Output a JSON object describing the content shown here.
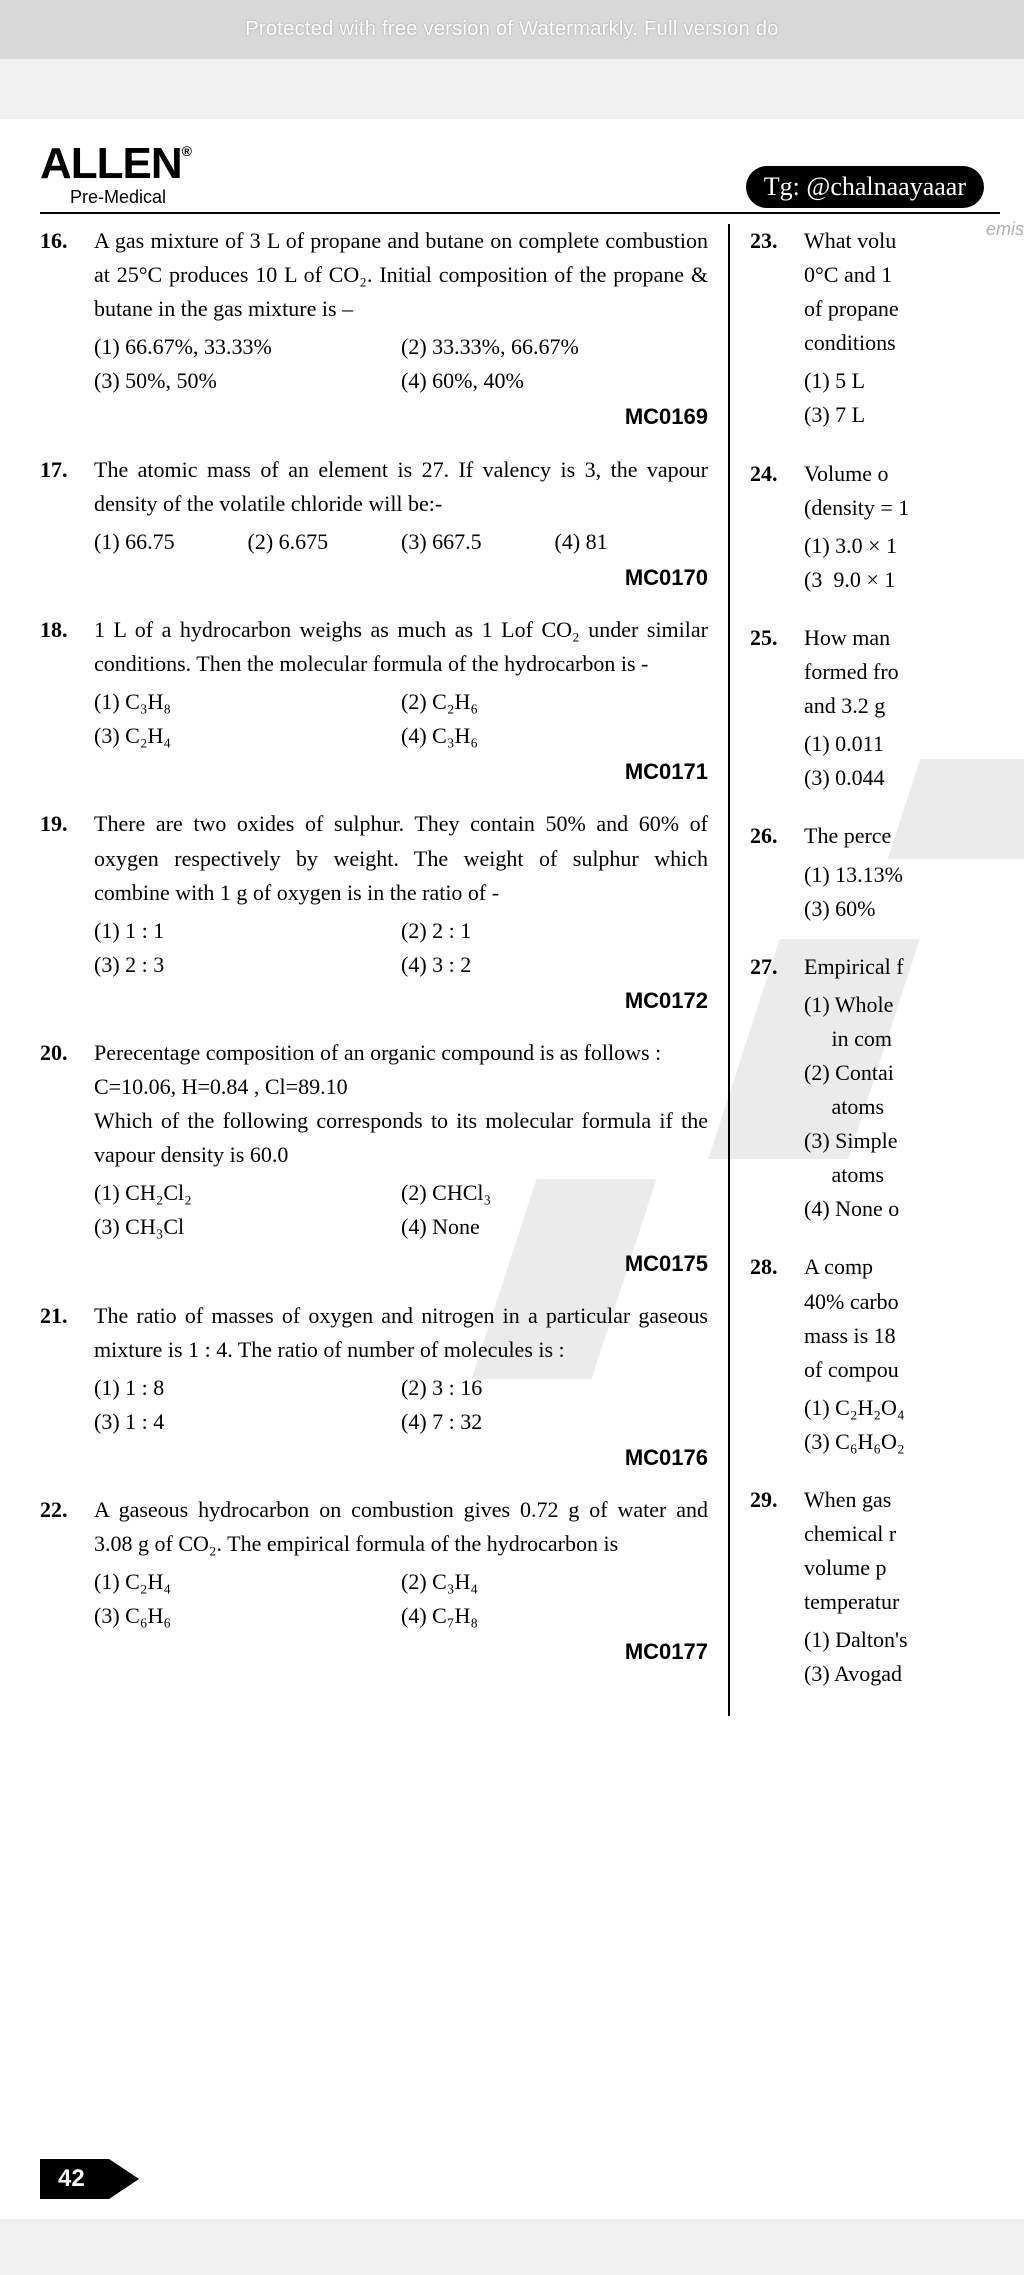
{
  "watermark": "Protected with free version of Watermarkly. Full version do",
  "logo": "ALLEN",
  "logo_reg": "®",
  "pre_medical": "Pre-Medical",
  "tg": "Tg: @chalnaayaaar",
  "emis": "emis",
  "page_number": "42",
  "left": [
    {
      "num": "16.",
      "text": "A gas mixture of 3 L of propane and butane on complete combustion at 25°C produces 10 L of CO₂. Initial composition of the propane & butane in the gas mixture is –",
      "opts": [
        "(1) 66.67%, 33.33%",
        "(2) 33.33%, 66.67%",
        "(3) 50%, 50%",
        "(4) 60%, 40%"
      ],
      "cols": 2,
      "code": "MC0169"
    },
    {
      "num": "17.",
      "text": "The atomic mass of an element is 27. If valency is 3, the vapour density of the volatile chloride will be:-",
      "opts": [
        "(1) 66.75",
        "(2) 6.675",
        "(3) 667.5",
        "(4) 81"
      ],
      "cols": 4,
      "code": "MC0170"
    },
    {
      "num": "18.",
      "text": "1 L of a hydrocarbon weighs as much as 1 Lof CO₂ under similar conditions. Then the molecular formula of the hydrocarbon is -",
      "opts": [
        "(1) C₃H₈",
        "(2) C₂H₆",
        "(3) C₂H₄",
        "(4) C₃H₆"
      ],
      "cols": 2,
      "code": "MC0171"
    },
    {
      "num": "19.",
      "text": "There are two oxides of sulphur. They contain 50% and 60% of oxygen respectively by weight. The weight of sulphur which combine with 1 g of oxygen is in the ratio of -",
      "opts": [
        "(1) 1 : 1",
        "(2) 2 : 1",
        "(3) 2 : 3",
        "(4) 3 : 2"
      ],
      "cols": 2,
      "code": "MC0172"
    },
    {
      "num": "20.",
      "text": "Perecentage composition of an organic compound is as follows :\nC=10.06, H=0.84 , Cl=89.10\nWhich of the following corresponds to its molecular formula if the vapour density is 60.0",
      "opts": [
        "(1) CH₂Cl₂",
        "(2) CHCl₃",
        "(3) CH₃Cl",
        "(4) None"
      ],
      "cols": 2,
      "code": "MC0175"
    },
    {
      "num": "21.",
      "text": "The ratio of masses of oxygen and nitrogen in a particular gaseous mixture is 1 : 4. The ratio of number of molecules is :",
      "opts": [
        "(1) 1 : 8",
        "(2) 3 : 16",
        "(3) 1 : 4",
        "(4) 7 : 32"
      ],
      "cols": 2,
      "code": "MC0176"
    },
    {
      "num": "22.",
      "text": "A gaseous hydrocarbon on combustion gives 0.72 g of water and 3.08 g of CO₂. The empirical formula of the hydrocarbon is",
      "opts": [
        "(1) C₂H₄",
        "(2) C₃H₄",
        "(3) C₆H₆",
        "(4) C₇H₈"
      ],
      "cols": 2,
      "code": "MC0177"
    }
  ],
  "right": [
    {
      "num": "23.",
      "text": "What volu",
      "extra": [
        "0°C and 1",
        "of propane",
        "conditions"
      ],
      "opts": [
        "(1) 5 L",
        "(3) 7 L"
      ]
    },
    {
      "num": "24.",
      "text": "Volume o",
      "extra": [
        "(density = 1"
      ],
      "opts": [
        "(1) 3.0 × 1",
        "(3  9.0 × 1"
      ]
    },
    {
      "num": "25.",
      "text": "How man",
      "extra": [
        "formed fro",
        "and 3.2 g"
      ],
      "opts": [
        "(1) 0.011",
        "(3) 0.044"
      ]
    },
    {
      "num": "26.",
      "text": "The perce",
      "extra": [],
      "opts": [
        "(1) 13.13%",
        "(3) 60%"
      ]
    },
    {
      "num": "27.",
      "text": "Empirical f",
      "extra": [],
      "opts": [
        "(1) Whole",
        "     in com",
        "(2) Contai",
        "     atoms",
        "(3) Simple",
        "     atoms",
        "(4) None o"
      ]
    },
    {
      "num": "28.",
      "text": "A comp",
      "extra": [
        "40% carbo",
        "mass is 18",
        "of compou"
      ],
      "opts": [
        "(1) C₂H₂O₄",
        "(3) C₆H₆O₂"
      ]
    },
    {
      "num": "29.",
      "text": "When gas",
      "extra": [
        "chemical r",
        "volume p",
        "temperatur"
      ],
      "opts": [
        "(1) Dalton's",
        "(3) Avogad"
      ]
    }
  ]
}
